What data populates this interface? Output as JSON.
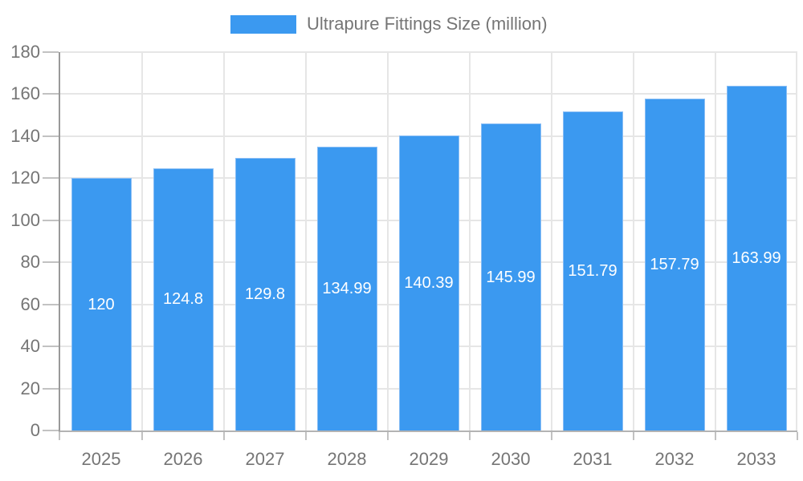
{
  "chart_data": {
    "type": "bar",
    "title": "Ultrapure Fittings Size (million)",
    "legend": {
      "position": "top",
      "label": "Ultrapure Fittings Size (million)"
    },
    "categories": [
      "2025",
      "2026",
      "2027",
      "2028",
      "2029",
      "2030",
      "2031",
      "2032",
      "2033"
    ],
    "series": [
      {
        "name": "Ultrapure Fittings Size (million)",
        "values": [
          120,
          124.8,
          129.8,
          134.99,
          140.39,
          145.99,
          151.79,
          157.79,
          163.99
        ],
        "data_labels": [
          "120",
          "124.8",
          "129.8",
          "134.99",
          "140.39",
          "145.99",
          "151.79",
          "157.79",
          "163.99"
        ],
        "color": "#3b99f0"
      }
    ],
    "xlabel": "",
    "ylabel": "",
    "ylim": [
      0,
      180
    ],
    "ytick_step": 20,
    "yticks": [
      0,
      20,
      40,
      60,
      80,
      100,
      120,
      140,
      160,
      180
    ],
    "grid": true,
    "value_label_position": "center-of-bar"
  },
  "colors": {
    "bar": "#3b99f0",
    "bar_border": "#8abef5",
    "grid": "#e6e6e6",
    "y_axis_line": "#999999",
    "x_axis_line": "#b3b3b3",
    "tick": "#c2c2c2",
    "axis_text": "#757575",
    "legend_text": "#757575",
    "value_label_text": "#ffffff",
    "background": "#ffffff"
  }
}
